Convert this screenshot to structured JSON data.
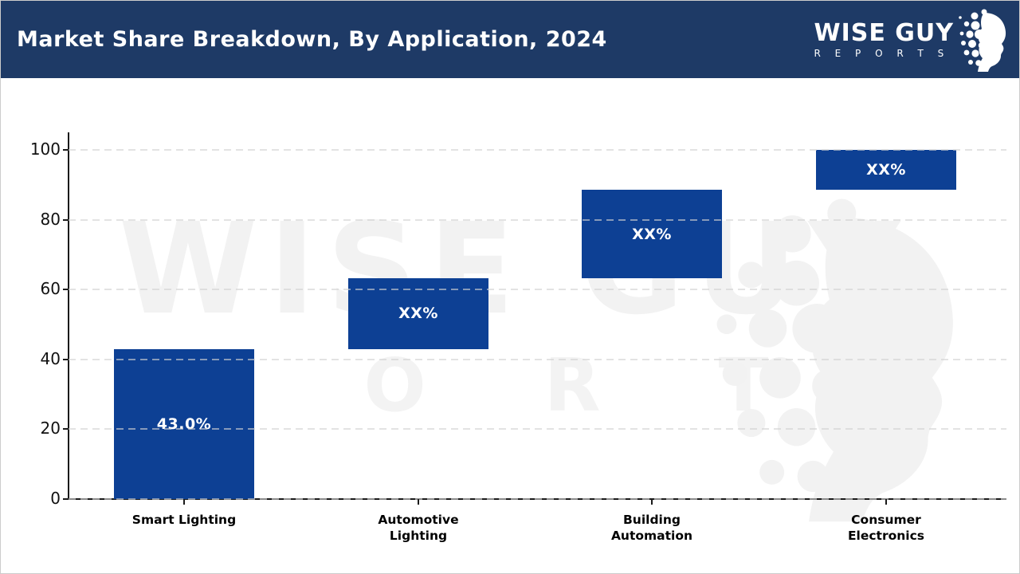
{
  "header": {
    "title": "Market Share Breakdown, By Application, 2024",
    "logo": {
      "line1": "WISE GUY",
      "line2": "R E P O R T S"
    }
  },
  "watermark": {
    "line1": "WISE GUY",
    "line2": "P O R T S"
  },
  "chart_data": {
    "type": "bar",
    "subtype": "waterfall",
    "title": "Market Share Breakdown, By Application, 2024",
    "categories": [
      "Smart Lighting",
      "Automotive Lighting",
      "Building Automation",
      "Consumer Electronics"
    ],
    "segments": [
      {
        "category": "Smart Lighting",
        "label_lines": [
          "Smart Lighting"
        ],
        "start": 0,
        "end": 43.0,
        "value_label": "43.0%"
      },
      {
        "category": "Automotive Lighting",
        "label_lines": [
          "Automotive",
          "Lighting"
        ],
        "start": 43.0,
        "end": 63.2,
        "value_label": "XX%"
      },
      {
        "category": "Building Automation",
        "label_lines": [
          "Building",
          "Automation"
        ],
        "start": 63.2,
        "end": 88.6,
        "value_label": "XX%"
      },
      {
        "category": "Consumer Electronics",
        "label_lines": [
          "Consumer",
          "Electronics"
        ],
        "start": 88.6,
        "end": 100.0,
        "value_label": "XX%"
      }
    ],
    "xlabel": "",
    "ylabel": "",
    "yticks": [
      0,
      20,
      40,
      60,
      80,
      100
    ],
    "ylim": [
      0,
      105
    ],
    "grid": "horizontal-dashed",
    "legend": "none",
    "bar_color": "#0d4094",
    "bar_label_color": "#ffffff",
    "axis_color": "#1a1a1a",
    "gridline_color": "#d9d9d9",
    "header_bg": "#1e3a66"
  }
}
